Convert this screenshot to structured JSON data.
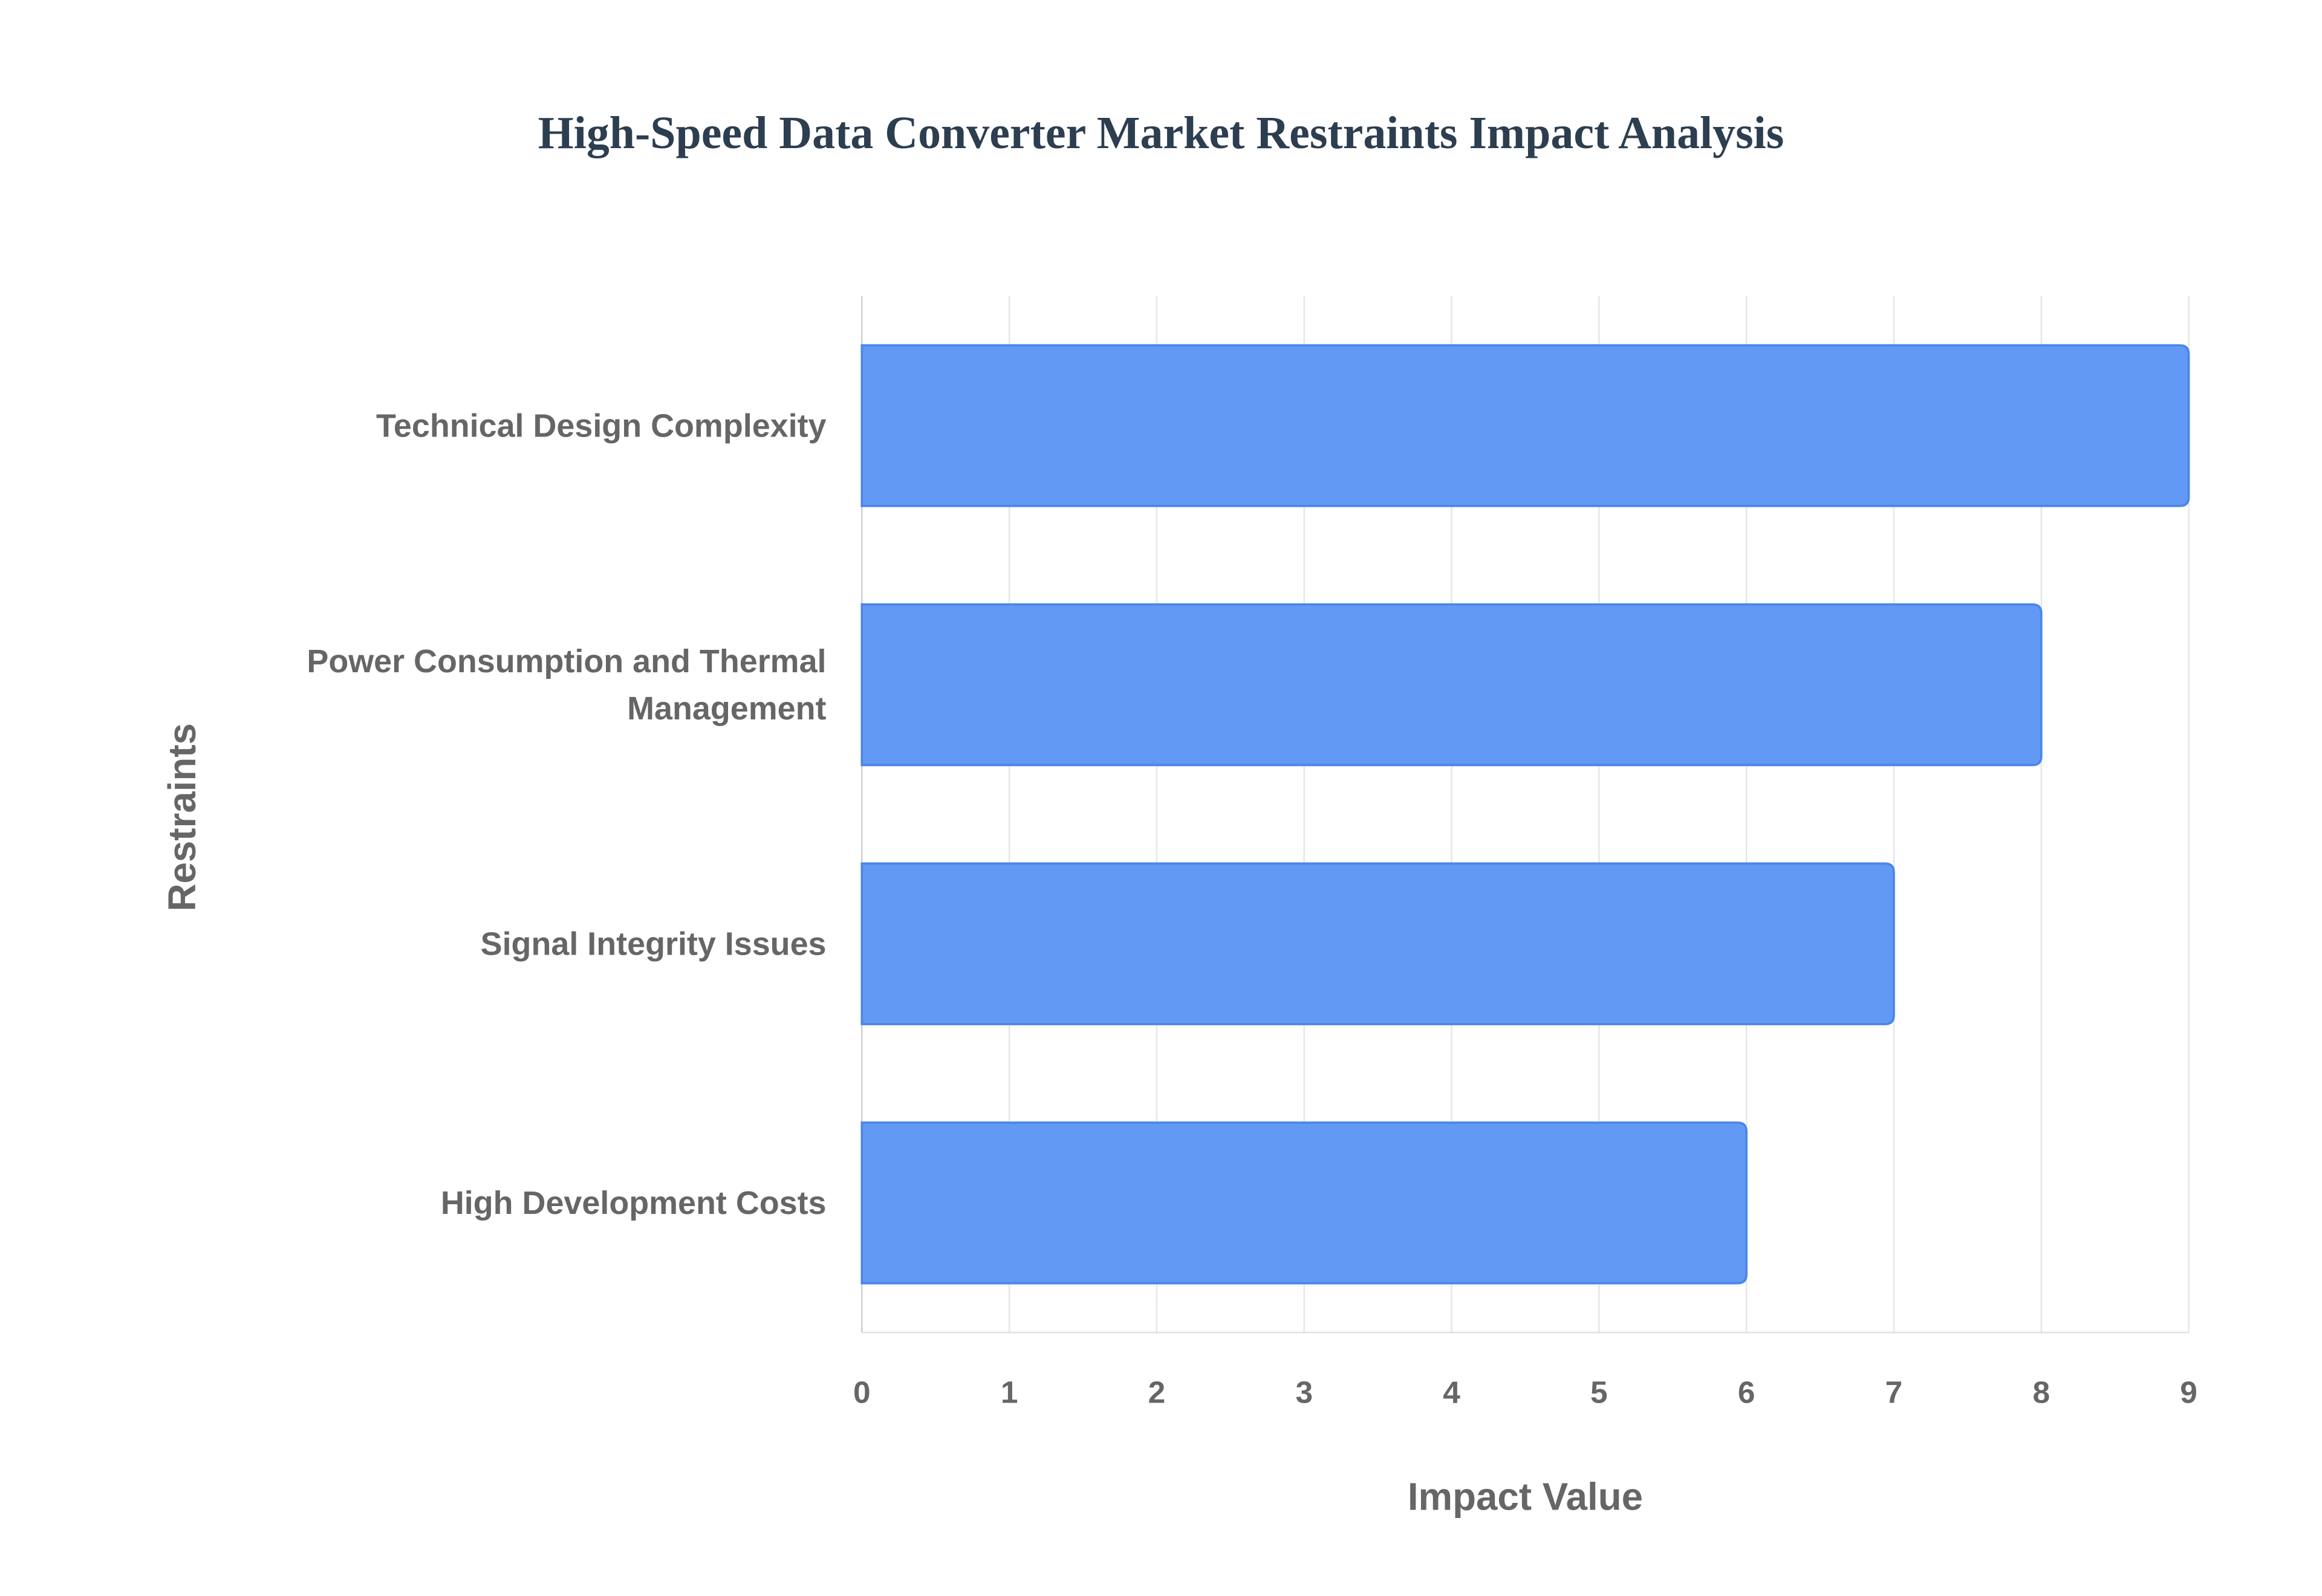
{
  "chart_data": {
    "type": "bar",
    "orientation": "horizontal",
    "title": "High-Speed Data Converter Market Restraints Impact Analysis",
    "categories": [
      "Technical Design Complexity",
      "Power Consumption and Thermal Management",
      "Signal Integrity Issues",
      "High Development Costs"
    ],
    "values": [
      9,
      8,
      7,
      6
    ],
    "color": "#6299f4",
    "edge_color": "#4a86e8",
    "xlabel": "Impact Value",
    "ylabel": "Restraints",
    "xlim": [
      0,
      9
    ],
    "xticks": [
      0,
      1,
      2,
      3,
      4,
      5,
      6,
      7,
      8,
      9
    ],
    "grid": true
  }
}
